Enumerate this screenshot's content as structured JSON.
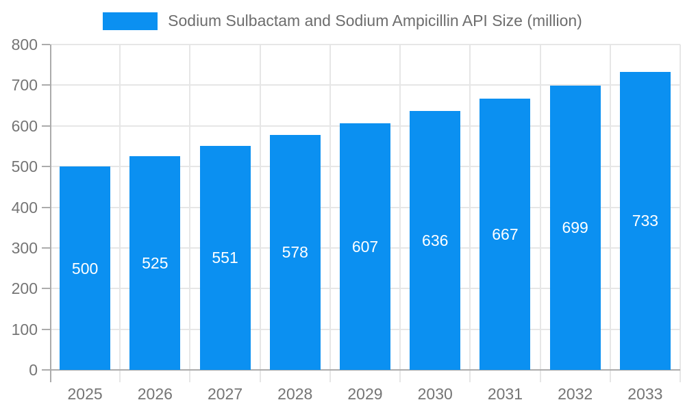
{
  "chart_data": {
    "type": "bar",
    "title": "Sodium Sulbactam and Sodium Ampicillin API Size (million)",
    "categories": [
      "2025",
      "2026",
      "2027",
      "2028",
      "2029",
      "2030",
      "2031",
      "2032",
      "2033"
    ],
    "values": [
      500,
      525,
      551,
      578,
      607,
      636,
      667,
      699,
      733
    ],
    "xlabel": "",
    "ylabel": "",
    "ylim": [
      0,
      800
    ],
    "ytick_step": 100,
    "grid": true,
    "legend_position": "top"
  },
  "legend": {
    "label": "Sodium Sulbactam and Sodium Ampicillin API Size (million)"
  },
  "colors": {
    "bar": "#0b90f1",
    "bar_label": "#ffffff",
    "axis": "#ababab",
    "grid": "#e6e6e6",
    "tick_text": "#757575",
    "legend_text": "#6d6d6d",
    "background": "#ffffff"
  }
}
